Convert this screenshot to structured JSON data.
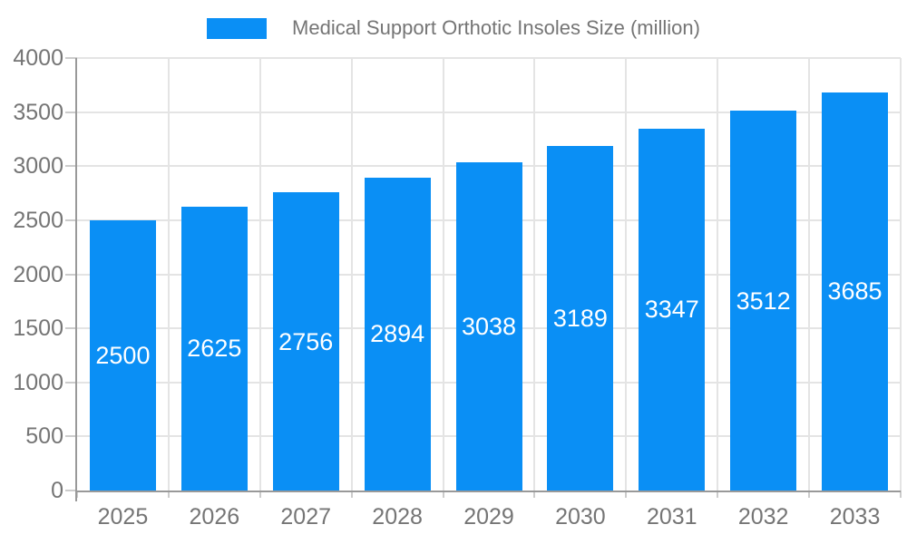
{
  "chart_data": {
    "type": "bar",
    "title": "Medical Support Orthotic Insoles Size (million)",
    "series_name": "Medical Support Orthotic Insoles Size (million)",
    "categories": [
      "2025",
      "2026",
      "2027",
      "2028",
      "2029",
      "2030",
      "2031",
      "2032",
      "2033"
    ],
    "values": [
      2500,
      2625,
      2756,
      2894,
      3038,
      3189,
      3347,
      3512,
      3685
    ],
    "xlabel": "",
    "ylabel": "",
    "ylim": [
      0,
      4000
    ],
    "yticks": [
      0,
      500,
      1000,
      1500,
      2000,
      2500,
      3000,
      3500,
      4000
    ],
    "grid": true,
    "legend_position": "top-center",
    "bar_color": "#0A8FF5",
    "value_label_color": "#FFFFFF",
    "axis_label_color": "#757575",
    "axis_line_color": "#999999",
    "gridline_color": "#E4E4E4",
    "tick_color": "#CCCCCC"
  }
}
